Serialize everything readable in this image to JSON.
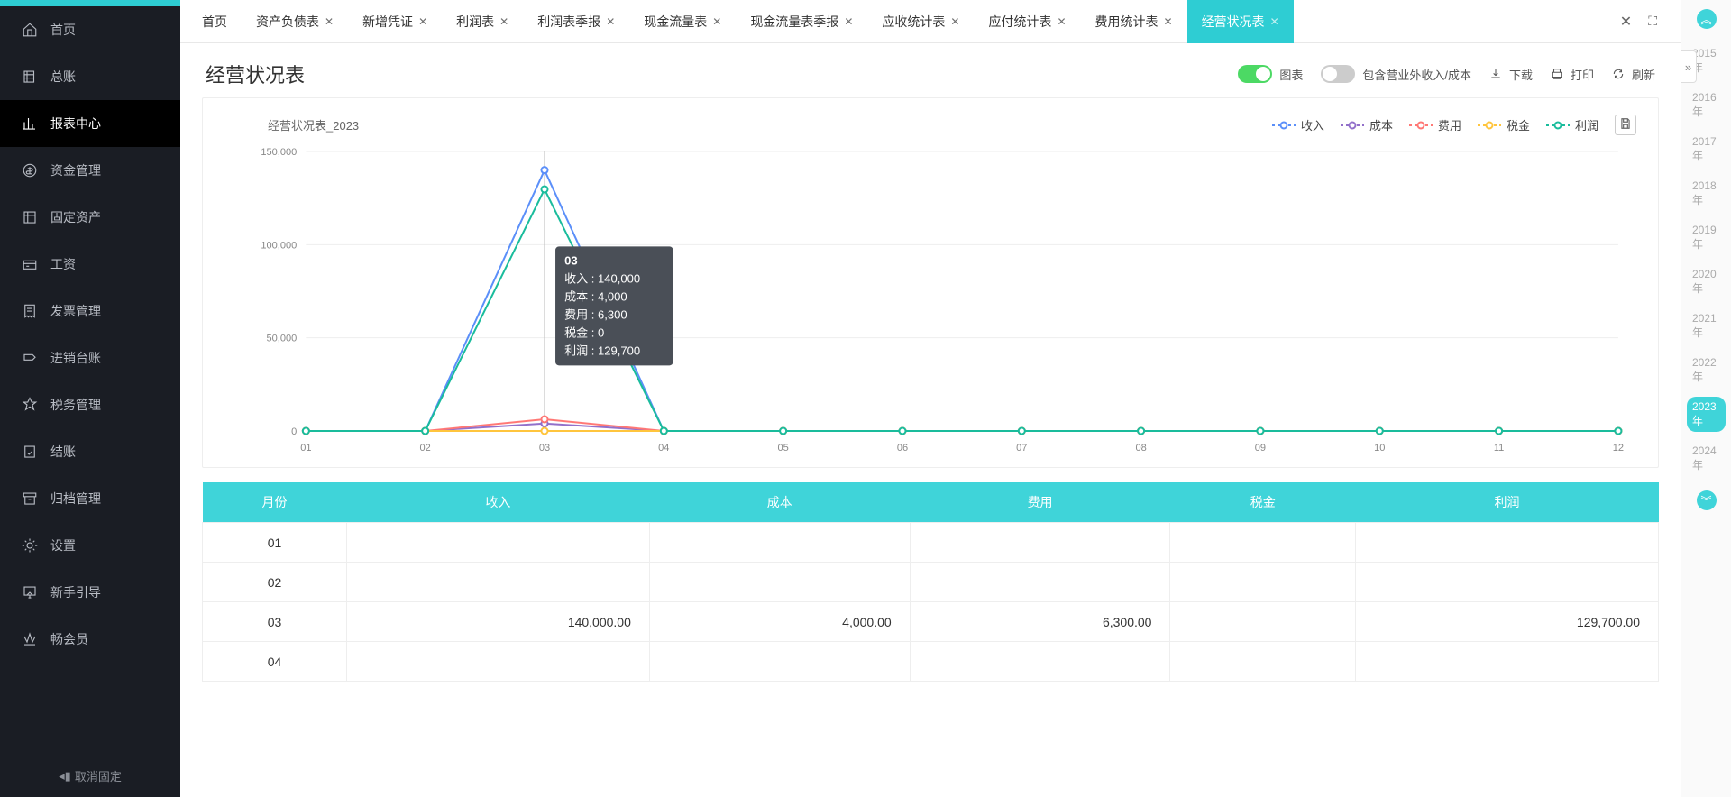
{
  "sidebar": {
    "items": [
      {
        "label": "首页",
        "icon": "home"
      },
      {
        "label": "总账",
        "icon": "ledger"
      },
      {
        "label": "报表中心",
        "icon": "chart",
        "active": true
      },
      {
        "label": "资金管理",
        "icon": "money"
      },
      {
        "label": "固定资产",
        "icon": "asset"
      },
      {
        "label": "工资",
        "icon": "salary"
      },
      {
        "label": "发票管理",
        "icon": "invoice"
      },
      {
        "label": "进销台账",
        "icon": "inout"
      },
      {
        "label": "税务管理",
        "icon": "tax"
      },
      {
        "label": "结账",
        "icon": "close"
      },
      {
        "label": "归档管理",
        "icon": "archive"
      },
      {
        "label": "设置",
        "icon": "gear"
      },
      {
        "label": "新手引导",
        "icon": "guide"
      },
      {
        "label": "畅会员",
        "icon": "vip"
      }
    ],
    "footer": "取消固定"
  },
  "tabs": [
    {
      "label": "首页",
      "closable": false
    },
    {
      "label": "资产负债表",
      "closable": true
    },
    {
      "label": "新增凭证",
      "closable": true
    },
    {
      "label": "利润表",
      "closable": true
    },
    {
      "label": "利润表季报",
      "closable": true
    },
    {
      "label": "现金流量表",
      "closable": true
    },
    {
      "label": "现金流量表季报",
      "closable": true
    },
    {
      "label": "应收统计表",
      "closable": true
    },
    {
      "label": "应付统计表",
      "closable": true
    },
    {
      "label": "费用统计表",
      "closable": true
    },
    {
      "label": "经营状况表",
      "closable": true,
      "active": true
    }
  ],
  "page": {
    "title": "经营状况表",
    "toggle_chart_label": "图表",
    "toggle_chart_on": true,
    "toggle_extra_label": "包含营业外收入/成本",
    "toggle_extra_on": false,
    "download_label": "下载",
    "print_label": "打印",
    "refresh_label": "刷新"
  },
  "chart": {
    "title": "经营状况表_2023",
    "type": "line",
    "categories": [
      "01",
      "02",
      "03",
      "04",
      "05",
      "06",
      "07",
      "08",
      "09",
      "10",
      "11",
      "12"
    ],
    "y_ticks": [
      0,
      50000,
      100000,
      150000
    ],
    "y_tick_labels": [
      "0",
      "50,000",
      "100,000",
      "150,000"
    ],
    "ylim": [
      0,
      150000
    ],
    "background_color": "#ffffff",
    "grid_color": "#eeeeee",
    "axis_label_color": "#888888",
    "series": [
      {
        "name": "收入",
        "color": "#5b8ff9",
        "values": [
          0,
          0,
          140000,
          0,
          0,
          0,
          0,
          0,
          0,
          0,
          0,
          0
        ]
      },
      {
        "name": "成本",
        "color": "#9270ca",
        "values": [
          0,
          0,
          4000,
          0,
          0,
          0,
          0,
          0,
          0,
          0,
          0,
          0
        ]
      },
      {
        "name": "费用",
        "color": "#ff7875",
        "values": [
          0,
          0,
          6300,
          0,
          0,
          0,
          0,
          0,
          0,
          0,
          0,
          0
        ]
      },
      {
        "name": "税金",
        "color": "#ffc53d",
        "values": [
          0,
          0,
          0,
          0,
          0,
          0,
          0,
          0,
          0,
          0,
          0,
          0
        ]
      },
      {
        "name": "利润",
        "color": "#1abc9c",
        "values": [
          0,
          0,
          129700,
          0,
          0,
          0,
          0,
          0,
          0,
          0,
          0,
          0
        ]
      }
    ],
    "tooltip": {
      "category": "03",
      "rows": [
        {
          "label": "收入",
          "value": "140,000"
        },
        {
          "label": "成本",
          "value": "4,000"
        },
        {
          "label": "费用",
          "value": "6,300"
        },
        {
          "label": "税金",
          "value": "0"
        },
        {
          "label": "利润",
          "value": "129,700"
        }
      ]
    }
  },
  "table": {
    "columns": [
      "月份",
      "收入",
      "成本",
      "费用",
      "税金",
      "利润"
    ],
    "rows": [
      {
        "month": "01",
        "income": "",
        "cost": "",
        "expense": "",
        "tax": "",
        "profit": ""
      },
      {
        "month": "02",
        "income": "",
        "cost": "",
        "expense": "",
        "tax": "",
        "profit": ""
      },
      {
        "month": "03",
        "income": "140,000.00",
        "cost": "4,000.00",
        "expense": "6,300.00",
        "tax": "",
        "profit": "129,700.00"
      },
      {
        "month": "04",
        "income": "",
        "cost": "",
        "expense": "",
        "tax": "",
        "profit": ""
      }
    ]
  },
  "year_rail": {
    "years": [
      "2015年",
      "2016年",
      "2017年",
      "2018年",
      "2019年",
      "2020年",
      "2021年",
      "2022年",
      "2023年",
      "2024年"
    ],
    "active": "2023年"
  }
}
